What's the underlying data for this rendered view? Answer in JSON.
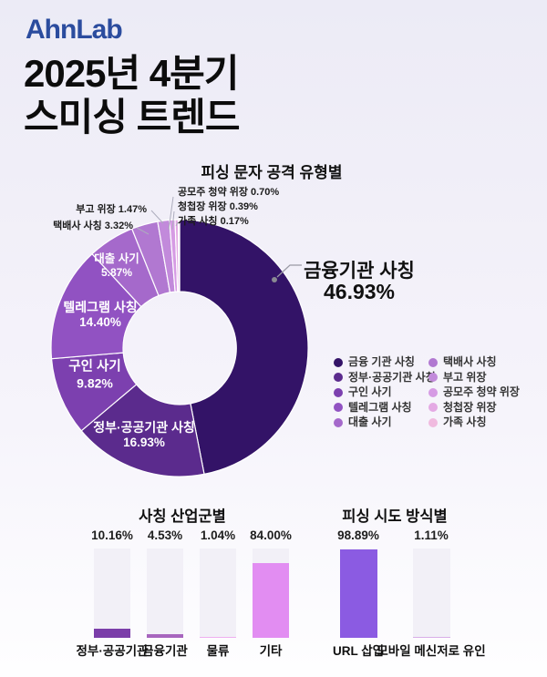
{
  "brand": {
    "logo": "AhnLab"
  },
  "header": {
    "title_line1": "2025년 4분기",
    "title_line2": "스미싱 트렌드"
  },
  "colors": {
    "logo_blue": "#2B4C9E",
    "background_top": "#ECEBF6",
    "background_bottom": "#FEFEFF",
    "bar_track": "#F2F0F7",
    "leader_line": "#ADADBD"
  },
  "chart_data": [
    {
      "type": "pie",
      "subtype": "donut",
      "title": "피싱 문자 공격 유형별",
      "categories": [
        "금융기관 사칭",
        "정부·공공기관 사칭",
        "구인 사기",
        "텔레그램 사칭",
        "대출 사기",
        "택배사 사칭",
        "부고 위장",
        "공모주 청약 위장",
        "청첩장 위장",
        "가족 사칭"
      ],
      "values": [
        46.93,
        16.93,
        9.82,
        14.4,
        5.87,
        3.32,
        1.47,
        0.7,
        0.39,
        0.17
      ],
      "value_labels": [
        "46.93%",
        "16.93%",
        "9.82%",
        "14.40%",
        "5.87%",
        "3.32%",
        "1.47%",
        "0.70%",
        "0.39%",
        "0.17%"
      ],
      "colors": [
        "#331367",
        "#5B2B8D",
        "#7C40AF",
        "#9152C2",
        "#A569CB",
        "#B178D1",
        "#C28ADB",
        "#D69BE4",
        "#E4A9E4",
        "#F0BADF"
      ],
      "callout": {
        "label": "금융기관 사칭",
        "value": "46.93%"
      },
      "legend_labels": [
        "금융 기관 사칭",
        "정부·공공기관 사칭",
        "구인 사기",
        "텔레그램 사칭",
        "대출 사기",
        "택배사 사칭",
        "부고 위장",
        "공모주 청약 위장",
        "청첩장 위장",
        "가족 사칭"
      ],
      "legend_position": "right"
    },
    {
      "type": "bar",
      "title": "사칭 산업군별",
      "categories": [
        "정부·공공기관",
        "금융기관",
        "물류",
        "기타"
      ],
      "values": [
        10.16,
        4.53,
        1.04,
        84.0
      ],
      "value_labels": [
        "10.16%",
        "4.53%",
        "1.04%",
        "84.00%"
      ],
      "colors": [
        "#7B3DA9",
        "#A765BE",
        "#EFAFF0",
        "#E28DF2"
      ],
      "ylim": [
        0,
        100
      ]
    },
    {
      "type": "bar",
      "title": "피싱 시도 방식별",
      "categories": [
        "URL 삽입",
        "모바일 메신저로 유인"
      ],
      "values": [
        98.89,
        1.11
      ],
      "value_labels": [
        "98.89%",
        "1.11%"
      ],
      "colors": [
        "#8B5BE2",
        "#D9AEE8"
      ],
      "ylim": [
        0,
        100
      ]
    }
  ]
}
